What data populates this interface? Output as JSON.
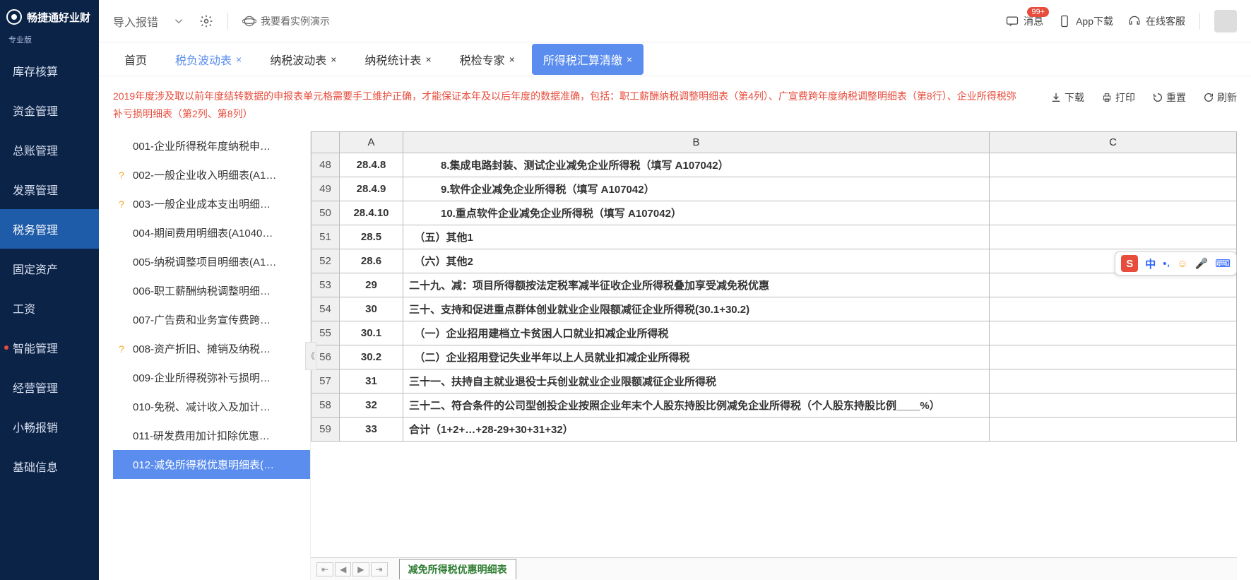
{
  "brand": {
    "name": "畅捷通好业财",
    "edition": "专业版"
  },
  "sidebar": {
    "items": [
      {
        "label": "库存核算",
        "active": false,
        "dot": false
      },
      {
        "label": "资金管理",
        "active": false,
        "dot": false
      },
      {
        "label": "总账管理",
        "active": false,
        "dot": false
      },
      {
        "label": "发票管理",
        "active": false,
        "dot": false
      },
      {
        "label": "税务管理",
        "active": true,
        "dot": false
      },
      {
        "label": "固定资产",
        "active": false,
        "dot": false
      },
      {
        "label": "工资",
        "active": false,
        "dot": false
      },
      {
        "label": "智能管理",
        "active": false,
        "dot": true
      },
      {
        "label": "经营管理",
        "active": false,
        "dot": false
      },
      {
        "label": "小畅报销",
        "active": false,
        "dot": false
      },
      {
        "label": "基础信息",
        "active": false,
        "dot": false
      }
    ]
  },
  "topbar": {
    "search": "导入报错",
    "demo": "我要看实例演示",
    "messages": {
      "label": "消息",
      "badge": "99+"
    },
    "download": "App下载",
    "support": "在线客服"
  },
  "tabs": [
    {
      "label": "首页",
      "closable": false,
      "style": ""
    },
    {
      "label": "税负波动表",
      "closable": true,
      "style": "blue"
    },
    {
      "label": "纳税波动表",
      "closable": true,
      "style": ""
    },
    {
      "label": "纳税统计表",
      "closable": true,
      "style": ""
    },
    {
      "label": "税检专家",
      "closable": true,
      "style": ""
    },
    {
      "label": "所得税汇算清缴",
      "closable": true,
      "style": "active"
    }
  ],
  "notice": "2019年度涉及取以前年度结转数据的申报表单元格需要手工维护正确，才能保证本年及以后年度的数据准确，包括：职工薪酬纳税调整明细表（第4列）、广宣费跨年度纳税调整明细表（第8行）、企业所得税弥补亏损明细表（第2列、第8列）",
  "toolbar": {
    "download": "下载",
    "print": "打印",
    "reset": "重置",
    "refresh": "刷新"
  },
  "tree": [
    {
      "label": "001-企业所得税年度纳税申…",
      "q": false,
      "sel": false
    },
    {
      "label": "002-一般企业收入明细表(A1…",
      "q": true,
      "sel": false
    },
    {
      "label": "003-一般企业成本支出明细…",
      "q": true,
      "sel": false
    },
    {
      "label": "004-期间费用明细表(A1040…",
      "q": false,
      "sel": false
    },
    {
      "label": "005-纳税调整项目明细表(A1…",
      "q": false,
      "sel": false
    },
    {
      "label": "006-职工薪酬纳税调整明细…",
      "q": false,
      "sel": false
    },
    {
      "label": "007-广告费和业务宣传费跨…",
      "q": false,
      "sel": false
    },
    {
      "label": "008-资产折旧、摊销及纳税…",
      "q": true,
      "sel": false
    },
    {
      "label": "009-企业所得税弥补亏损明…",
      "q": false,
      "sel": false
    },
    {
      "label": "010-免税、减计收入及加计…",
      "q": false,
      "sel": false
    },
    {
      "label": "011-研发费用加计扣除优惠…",
      "q": false,
      "sel": false
    },
    {
      "label": "012-减免所得税优惠明细表(…",
      "q": false,
      "sel": true
    }
  ],
  "sheet": {
    "columns": [
      "A",
      "B",
      "C"
    ],
    "rows": [
      {
        "n": "48",
        "a": "28.4.8",
        "b": "　　　8.集成电路封装、测试企业减免企业所得税（填写 A107042）"
      },
      {
        "n": "49",
        "a": "28.4.9",
        "b": "　　　9.软件企业减免企业所得税（填写 A107042）"
      },
      {
        "n": "50",
        "a": "28.4.10",
        "b": "　　　10.重点软件企业减免企业所得税（填写 A107042）"
      },
      {
        "n": "51",
        "a": "28.5",
        "b": "　（五）其他1"
      },
      {
        "n": "52",
        "a": "28.6",
        "b": "　（六）其他2"
      },
      {
        "n": "53",
        "a": "29",
        "b": "二十九、减：项目所得额按法定税率减半征收企业所得税叠加享受减免税优惠"
      },
      {
        "n": "54",
        "a": "30",
        "b": "三十、支持和促进重点群体创业就业企业限额减征企业所得税(30.1+30.2)"
      },
      {
        "n": "55",
        "a": "30.1",
        "b": "　（一）企业招用建档立卡贫困人口就业扣减企业所得税"
      },
      {
        "n": "56",
        "a": "30.2",
        "b": "　（二）企业招用登记失业半年以上人员就业扣减企业所得税"
      },
      {
        "n": "57",
        "a": "31",
        "b": "三十一、扶持自主就业退役士兵创业就业企业限额减征企业所得税"
      },
      {
        "n": "58",
        "a": "32",
        "b": "三十二、符合条件的公司型创投企业按照企业年末个人股东持股比例减免企业所得税（个人股东持股比例____%）"
      },
      {
        "n": "59",
        "a": "33",
        "b": "合计（1+2+…+28-29+30+31+32）"
      }
    ],
    "footer_tab": "减免所得税优惠明细表"
  },
  "ime": {
    "logo": "S",
    "lang": "中"
  }
}
